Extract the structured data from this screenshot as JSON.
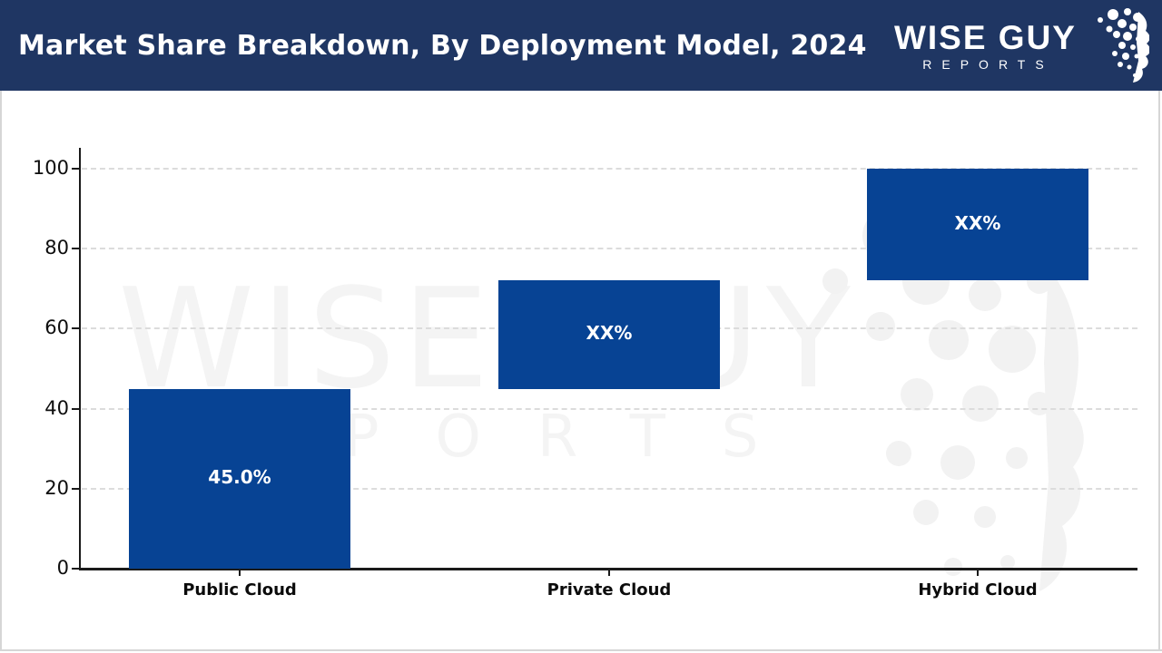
{
  "header": {
    "title": "Market Share Breakdown, By Deployment Model, 2024",
    "logo": {
      "line1": "WISE GUY",
      "line2": "REPORTS"
    }
  },
  "watermark": {
    "line1": "WISE GUY",
    "line2": "REPORTS"
  },
  "chart_data": {
    "type": "bar",
    "subtype": "floating-waterfall",
    "title": "Market Share Breakdown, By Deployment Model, 2024",
    "categories": [
      "Public Cloud",
      "Private Cloud",
      "Hybrid Cloud"
    ],
    "segments": [
      {
        "category": "Public Cloud",
        "start": 0,
        "end": 45,
        "label": "45.0%"
      },
      {
        "category": "Private Cloud",
        "start": 45,
        "end": 72,
        "label": "XX%"
      },
      {
        "category": "Hybrid Cloud",
        "start": 72,
        "end": 100,
        "label": "XX%"
      }
    ],
    "ylim": [
      0,
      100
    ],
    "yticks": [
      0,
      20,
      40,
      60,
      80,
      100
    ],
    "ytick_labels": [
      "0",
      "20",
      "40",
      "60",
      "80",
      "100"
    ],
    "xlabel": "",
    "ylabel": "",
    "grid": "horizontal-dashed",
    "legend": "none",
    "bar_color": "#074394",
    "bar_label_color": "#ffffff"
  },
  "colors": {
    "header_bg": "#1f3663",
    "bar": "#074394",
    "axis": "#1a1a1a",
    "gridline": "#dcdcdc",
    "watermark": "#f4f4f4",
    "edge_line": "#d6d6d6"
  }
}
